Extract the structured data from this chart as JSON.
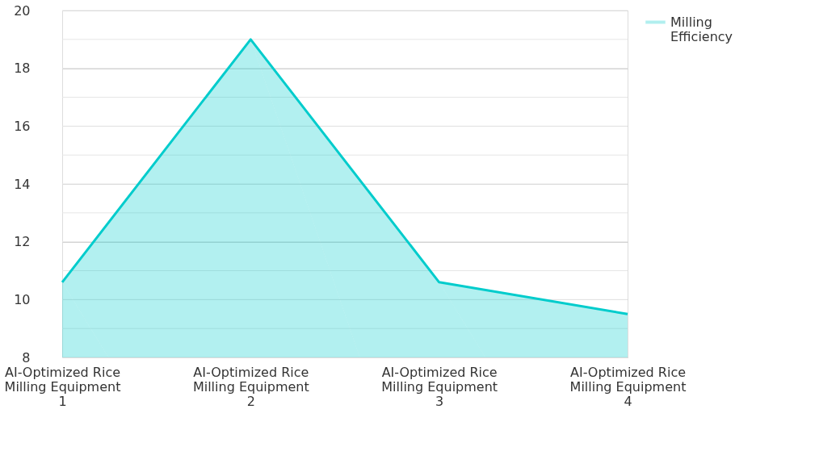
{
  "chart_data": {
    "type": "area",
    "categories": [
      "AI-Optimized Rice Milling Equipment 1",
      "AI-Optimized Rice Milling Equipment 2",
      "AI-Optimized Rice Milling Equipment 3",
      "AI-Optimized Rice Milling Equipment 4"
    ],
    "series": [
      {
        "name": "Milling Efficiency",
        "color": "#00cccc",
        "values": [
          10.6,
          19.0,
          10.6,
          9.5
        ]
      }
    ],
    "ylim": [
      8,
      20
    ],
    "yticks": [
      8,
      {
        "value": 9,
        "label": null
      },
      10,
      {
        "value": 11,
        "label": null
      },
      12,
      {
        "value": 13,
        "label": null
      },
      14,
      {
        "value": 15,
        "label": null
      },
      16,
      {
        "value": 17,
        "label": null
      },
      18,
      {
        "value": 19,
        "label": null
      },
      20
    ],
    "grid": "y",
    "legend": "top right"
  }
}
